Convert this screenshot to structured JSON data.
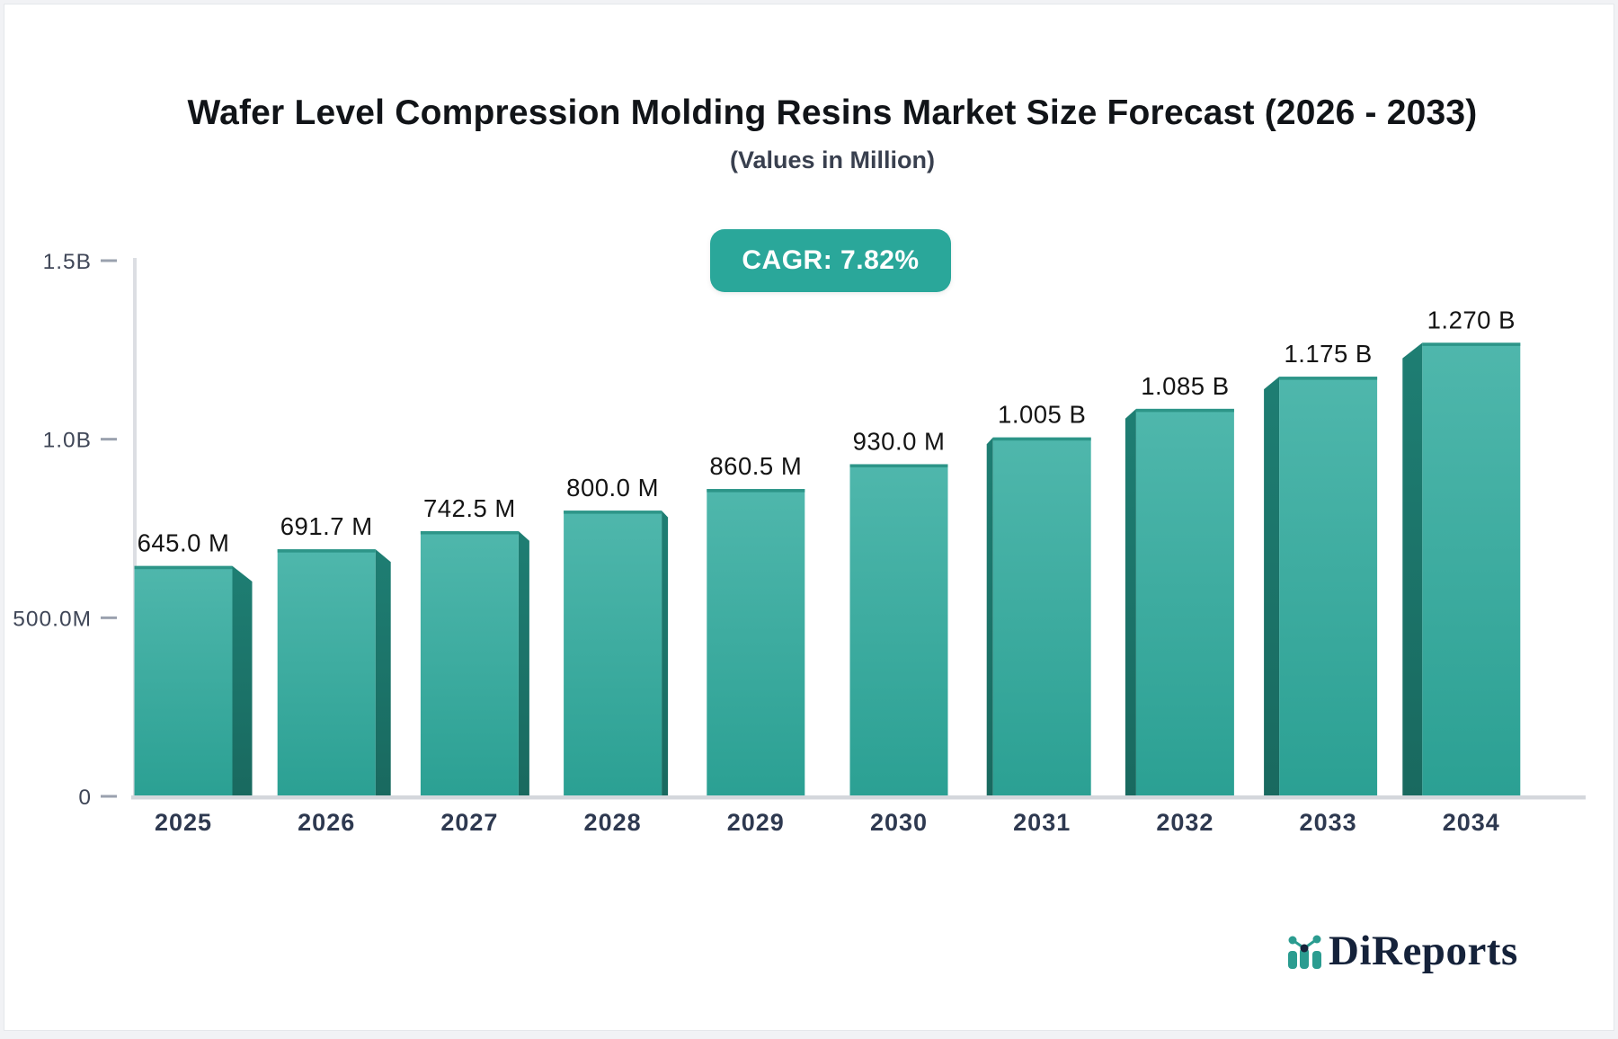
{
  "page": {
    "background": "#f1f2f5",
    "card_background": "#ffffff"
  },
  "chart_data": {
    "type": "bar",
    "title": "Wafer Level Compression Molding Resins Market Size Forecast (2026 - 2033)",
    "subtitle": "(Values in Million)",
    "cagr_badge": "CAGR: 7.82%",
    "categories": [
      "2025",
      "2026",
      "2027",
      "2028",
      "2029",
      "2030",
      "2031",
      "2032",
      "2033",
      "2034"
    ],
    "values_millions": [
      645.0,
      691.7,
      742.5,
      800.0,
      860.5,
      930.0,
      1005,
      1085,
      1175,
      1270
    ],
    "bar_labels": [
      "645.0 M",
      "691.7 M",
      "742.5 M",
      "800.0 M",
      "860.5 M",
      "930.0 M",
      "1.005 B",
      "1.085 B",
      "1.175 B",
      "1.270 B"
    ],
    "y_ticks": [
      {
        "label": "1.5B",
        "value": 1500
      },
      {
        "label": "1.0B",
        "value": 1000
      },
      {
        "label": "500.0M",
        "value": 500
      },
      {
        "label": "0",
        "value": 0
      }
    ],
    "ylim": [
      0,
      1500
    ],
    "xlabel": "",
    "ylabel": "",
    "grid": false,
    "legend": "none",
    "colors": {
      "bar_face_top": "#4fb7ac",
      "bar_face_bottom": "#2ba093",
      "bar_top_edge": "#2d9588",
      "bar_side_top": "#1e7e73",
      "bar_side_bottom": "#19695f",
      "axis_line": "#dcdee3",
      "baseline": "#d4d7dc",
      "tick_dash": "#9aa1ae",
      "tick_label": "#3f4657",
      "year_label": "#2e3950",
      "value_label": "#141414",
      "badge": "#2aa79a"
    }
  },
  "branding": {
    "logo_text": "DiReports",
    "logo_icon": "bar-chart-trend-icon",
    "logo_text_color": "#15223a",
    "logo_teal": "#2b9c90",
    "logo_navy": "#16233b"
  }
}
